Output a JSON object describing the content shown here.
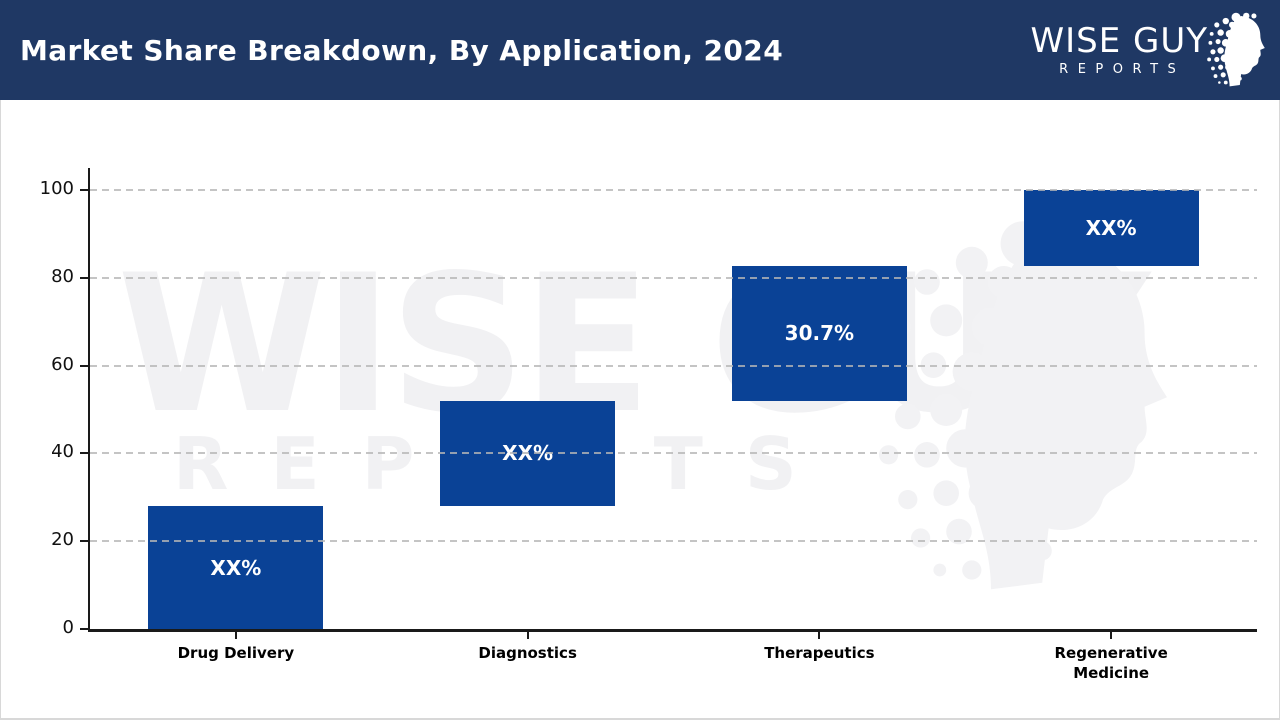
{
  "header": {
    "title": "Market Share Breakdown, By Application, 2024",
    "logo": {
      "wordmark": "WISE GUY",
      "subtext": "REPORTS"
    }
  },
  "watermark": {
    "wordmark": "WISE GUY",
    "subtext": "REPORTS"
  },
  "colors": {
    "header_bg": "#1f3864",
    "bar": "#0a4296",
    "bar_label": "#ffffff",
    "grid": "#cccccc",
    "axis": "#1a1a1a",
    "tick_text": "#111111",
    "watermark": "#f1f1f3"
  },
  "chart_data": {
    "type": "bar",
    "variant": "floating-waterfall",
    "title": "Market Share Breakdown, By Application, 2024",
    "categories": [
      "Drug Delivery",
      "Diagnostics",
      "Therapeutics",
      "Regenerative Medicine"
    ],
    "segments": [
      {
        "category": "Drug Delivery",
        "start": 0,
        "end": 28,
        "label": "XX%"
      },
      {
        "category": "Diagnostics",
        "start": 28,
        "end": 52,
        "label": "XX%"
      },
      {
        "category": "Therapeutics",
        "start": 52,
        "end": 82.7,
        "label": "30.7%"
      },
      {
        "category": "Regenerative Medicine",
        "start": 82.7,
        "end": 100,
        "label": "XX%"
      }
    ],
    "ylim": [
      0,
      100
    ],
    "yticks": [
      0,
      20,
      40,
      60,
      80,
      100
    ],
    "xlabel": "",
    "ylabel": "",
    "grid": "horizontal-dashed",
    "legend": "none"
  }
}
